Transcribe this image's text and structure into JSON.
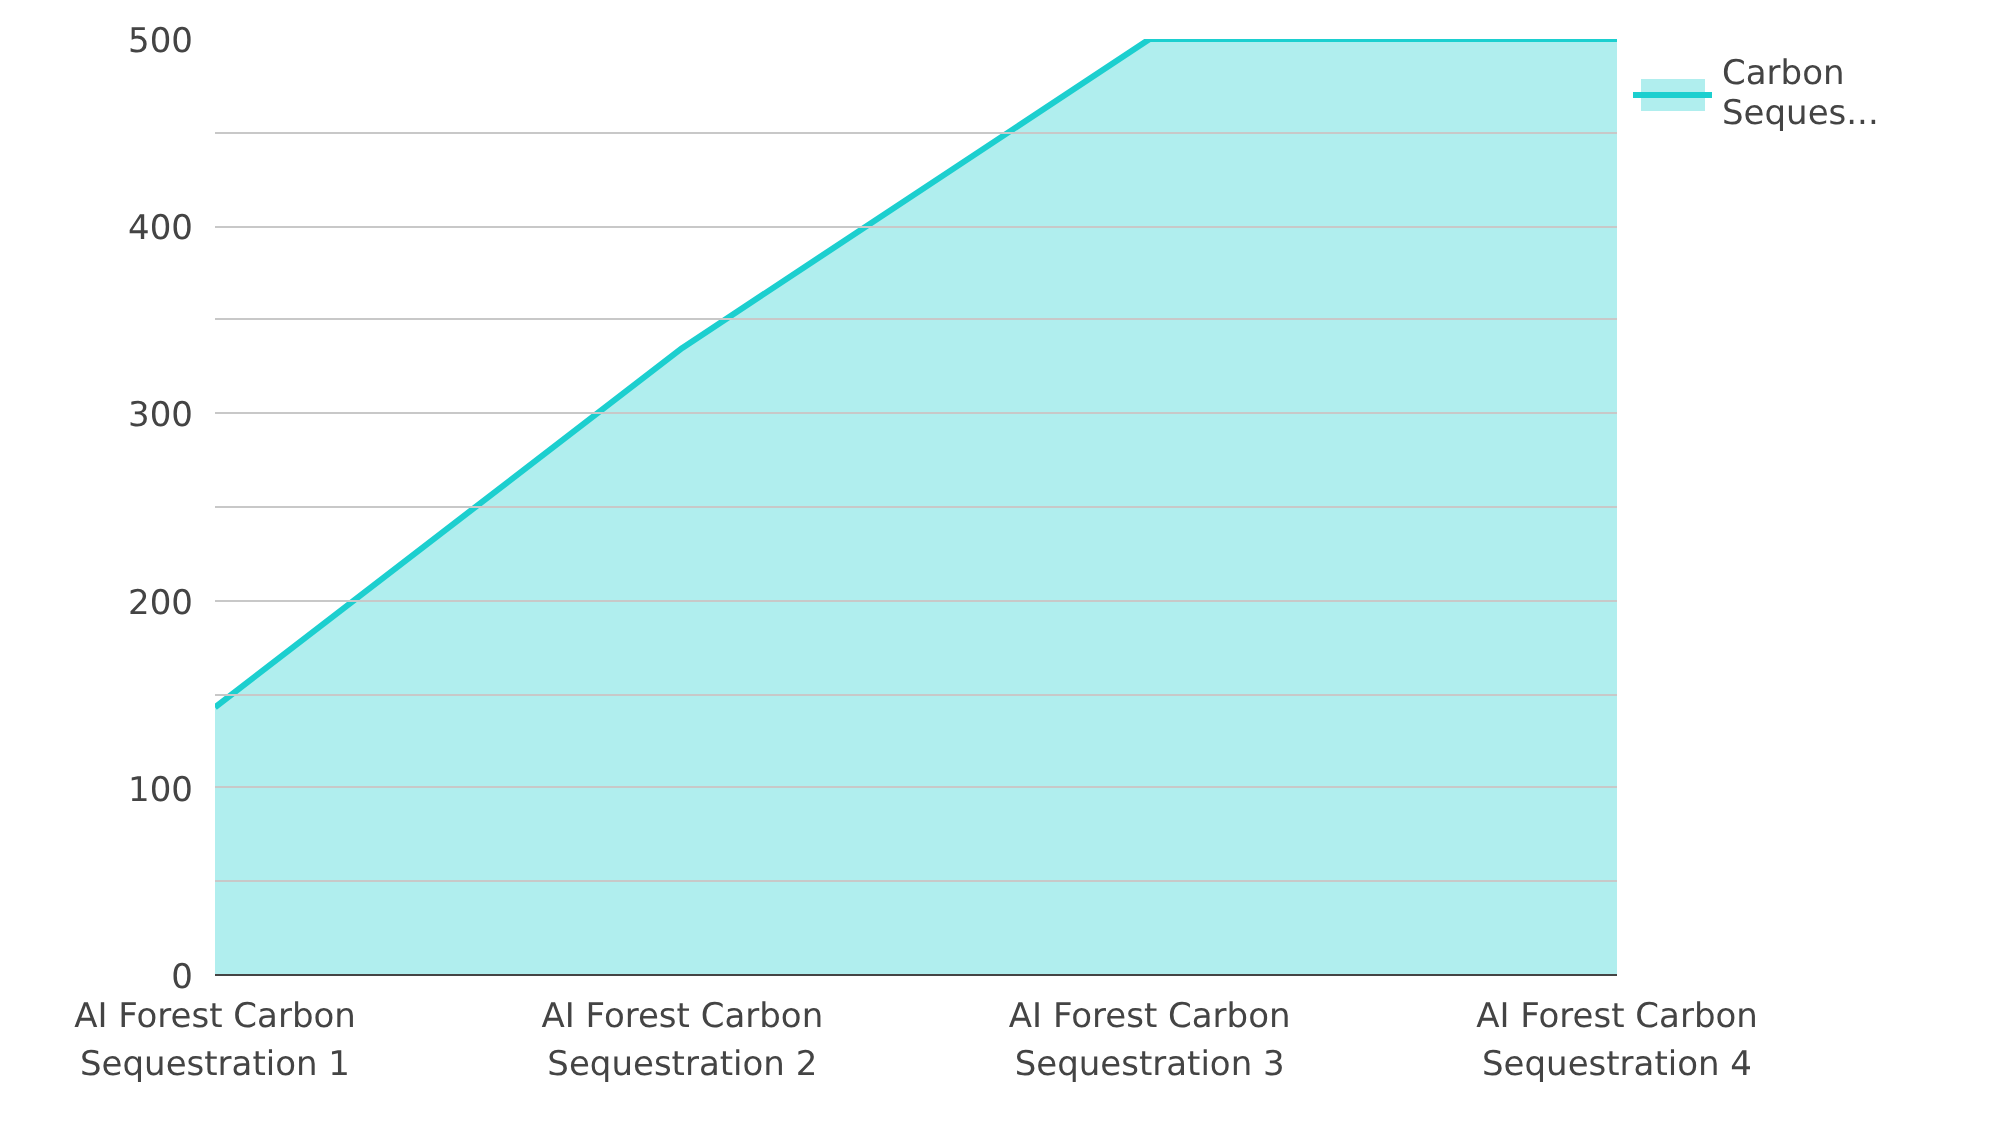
{
  "chart_data": {
    "type": "area",
    "categories": [
      "AI Forest Carbon Sequestration 1",
      "AI Forest Carbon Sequestration 2",
      "AI Forest Carbon Sequestration 3",
      "AI Forest Carbon Sequestration 4"
    ],
    "series": [
      {
        "name": "Carbon Seques...",
        "color": "#1ccfcf",
        "values": [
          143,
          335,
          500,
          500
        ]
      }
    ],
    "ylim": [
      0,
      500
    ],
    "yticks": [
      0,
      {
        "value": 50,
        "label": null
      },
      100,
      {
        "value": 150,
        "label": null
      },
      200,
      {
        "value": 250,
        "label": null
      },
      300,
      {
        "value": 350,
        "label": null
      },
      400,
      {
        "value": 450,
        "label": null
      },
      500
    ],
    "grid": "y",
    "legend": "top right"
  }
}
